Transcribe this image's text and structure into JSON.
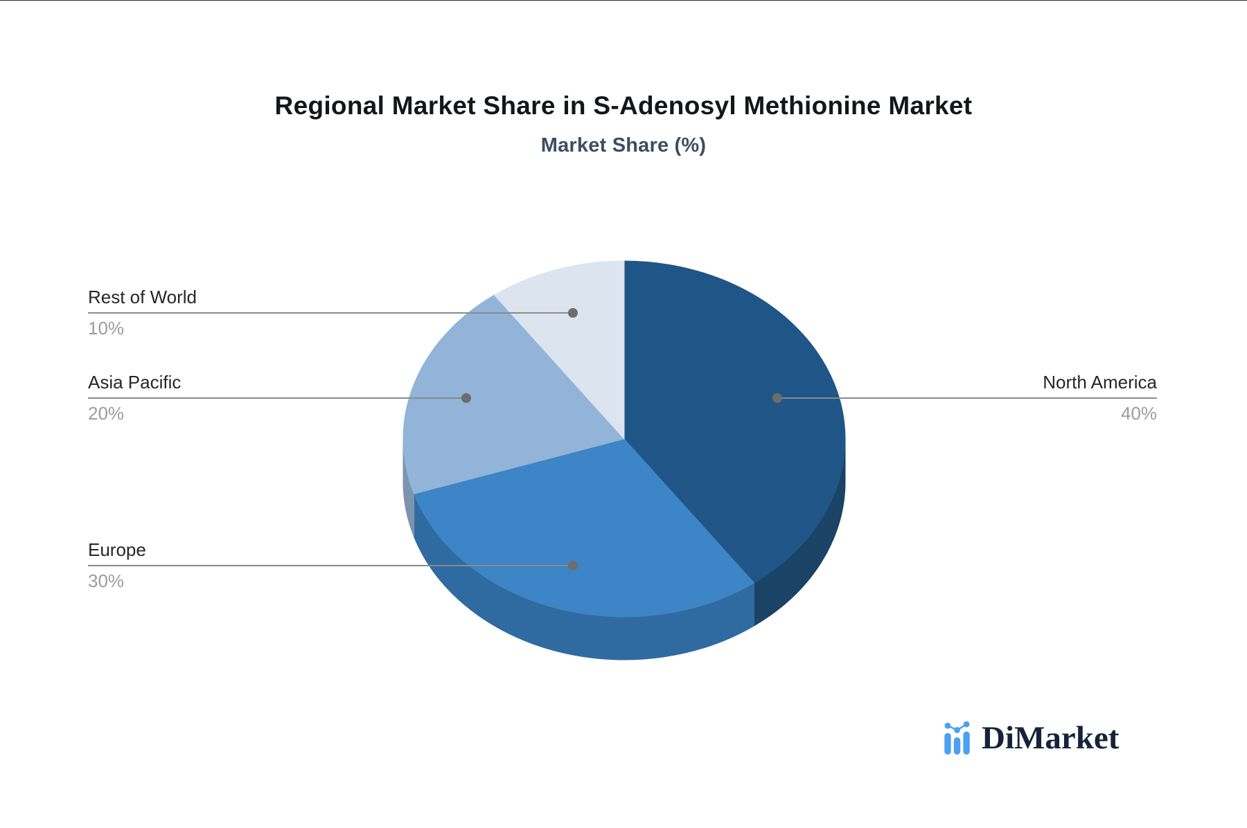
{
  "header": {
    "title": "Regional Market Share in S-Adenosyl Methionine Market",
    "subtitle": "Market Share (%)"
  },
  "chart_data": {
    "type": "pie",
    "style": "3d-pie",
    "title": "Regional Market Share in S-Adenosyl Methionine Market",
    "subtitle": "Market Share (%)",
    "unit": "%",
    "start_angle": "12-o-clock, clockwise",
    "legend_position": "callout-labels",
    "slices": [
      {
        "label": "North America",
        "value": 40,
        "value_label": "40%",
        "color": "#1F5687",
        "side_color": "#1A4366"
      },
      {
        "label": "Europe",
        "value": 30,
        "value_label": "30%",
        "color": "#3D85C6",
        "side_color": "#2F6BA0"
      },
      {
        "label": "Asia Pacific",
        "value": 20,
        "value_label": "20%",
        "color": "#92B4D8",
        "side_color": "#7D94AE"
      },
      {
        "label": "Rest of World",
        "value": 10,
        "value_label": "10%",
        "color": "#DCE4EF",
        "side_color": "#B7C4D6"
      }
    ],
    "callout_text_color": "#262626",
    "callout_value_color": "#9C9C9C",
    "leader_line_color": "#8A8A8A"
  },
  "branding": {
    "logo_text": "DiMarket",
    "logo_icon": "bar-line-chart-icon",
    "icon_color": "#4BA0F2",
    "text_color": "#15233B"
  }
}
